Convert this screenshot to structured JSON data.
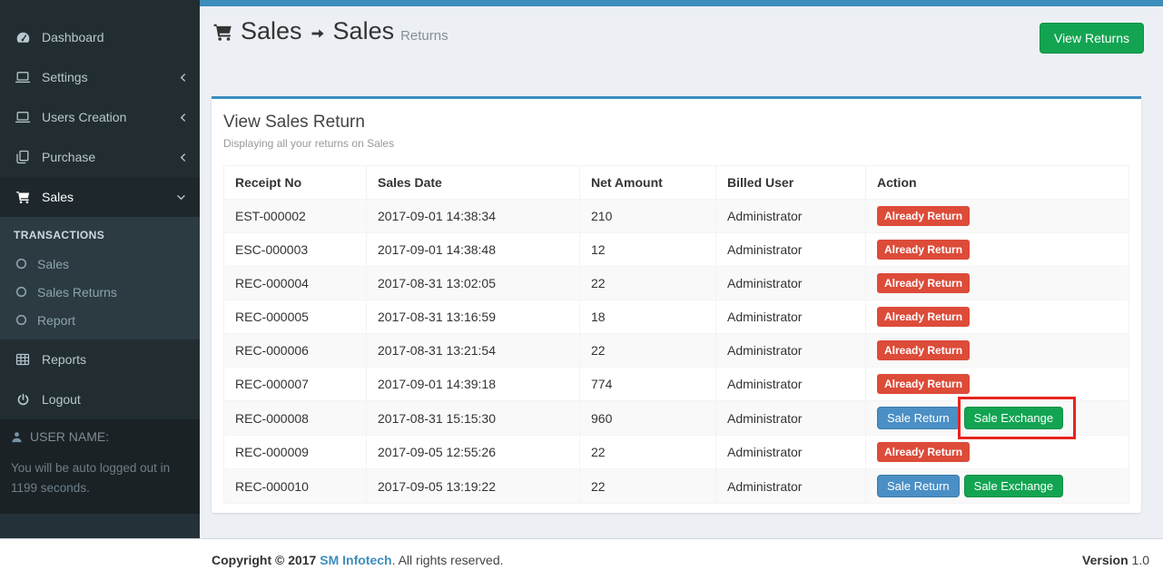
{
  "colors": {
    "accent_blue": "#3c8dbc",
    "button_green": "#13a452",
    "badge_red": "#dd4b39",
    "button_blue": "#4a8fc5",
    "sidebar_bg": "#222d32",
    "submenu_bg": "#2c3b41",
    "content_bg": "#ecf0f5",
    "highlight_red": "#e8231f"
  },
  "sidebar": {
    "items": [
      {
        "label": "Dashboard",
        "icon": "gauge-icon"
      },
      {
        "label": "Settings",
        "icon": "laptop-icon",
        "chevron": "left"
      },
      {
        "label": "Users Creation",
        "icon": "laptop-icon",
        "chevron": "left"
      },
      {
        "label": "Purchase",
        "icon": "copy-icon",
        "chevron": "left"
      },
      {
        "label": "Sales",
        "icon": "cart-icon",
        "chevron": "down",
        "active": true
      }
    ],
    "submenu_header": "TRANSACTIONS",
    "submenu": [
      {
        "label": "Sales"
      },
      {
        "label": "Sales Returns"
      },
      {
        "label": "Report"
      }
    ],
    "bottom_items": [
      {
        "label": "Reports",
        "icon": "table-icon"
      },
      {
        "label": "Logout",
        "icon": "power-icon"
      }
    ],
    "user_label": "USER NAME:",
    "auto_logout_text": "You will be auto logged out in 1199 seconds."
  },
  "header": {
    "breadcrumb_section": "Sales",
    "page_title": "Sales",
    "page_subtitle": "Returns",
    "view_returns_button": "View Returns"
  },
  "panel": {
    "title": "View Sales Return",
    "subtitle": "Displaying all your returns on Sales"
  },
  "table": {
    "columns": [
      "Receipt No",
      "Sales Date",
      "Net Amount",
      "Billed User",
      "Action"
    ],
    "rows": [
      {
        "receipt_no": "EST-000002",
        "sales_date": "2017-09-01 14:38:34",
        "net_amount": "210",
        "billed_user": "Administrator",
        "actions": [
          {
            "label": "Already Return",
            "type": "already-return"
          }
        ]
      },
      {
        "receipt_no": "ESC-000003",
        "sales_date": "2017-09-01 14:38:48",
        "net_amount": "12",
        "billed_user": "Administrator",
        "actions": [
          {
            "label": "Already Return",
            "type": "already-return"
          }
        ]
      },
      {
        "receipt_no": "REC-000004",
        "sales_date": "2017-08-31 13:02:05",
        "net_amount": "22",
        "billed_user": "Administrator",
        "actions": [
          {
            "label": "Already Return",
            "type": "already-return"
          }
        ]
      },
      {
        "receipt_no": "REC-000005",
        "sales_date": "2017-08-31 13:16:59",
        "net_amount": "18",
        "billed_user": "Administrator",
        "actions": [
          {
            "label": "Already Return",
            "type": "already-return"
          }
        ]
      },
      {
        "receipt_no": "REC-000006",
        "sales_date": "2017-08-31 13:21:54",
        "net_amount": "22",
        "billed_user": "Administrator",
        "actions": [
          {
            "label": "Already Return",
            "type": "already-return"
          }
        ]
      },
      {
        "receipt_no": "REC-000007",
        "sales_date": "2017-09-01 14:39:18",
        "net_amount": "774",
        "billed_user": "Administrator",
        "actions": [
          {
            "label": "Already Return",
            "type": "already-return"
          }
        ]
      },
      {
        "receipt_no": "REC-000008",
        "sales_date": "2017-08-31 15:15:30",
        "net_amount": "960",
        "billed_user": "Administrator",
        "actions": [
          {
            "label": "Sale Return",
            "type": "sale-return"
          },
          {
            "label": "Sale Exchange",
            "type": "sale-exchange",
            "highlighted": true
          }
        ]
      },
      {
        "receipt_no": "REC-000009",
        "sales_date": "2017-09-05 12:55:26",
        "net_amount": "22",
        "billed_user": "Administrator",
        "actions": [
          {
            "label": "Already Return",
            "type": "already-return"
          }
        ]
      },
      {
        "receipt_no": "REC-000010",
        "sales_date": "2017-09-05 13:19:22",
        "net_amount": "22",
        "billed_user": "Administrator",
        "actions": [
          {
            "label": "Sale Return",
            "type": "sale-return"
          },
          {
            "label": "Sale Exchange",
            "type": "sale-exchange"
          }
        ]
      }
    ]
  },
  "footer": {
    "copyright_prefix": "Copyright © 2017 ",
    "company_link": "SM Infotech",
    "copyright_suffix": ". All rights reserved.",
    "version_label": "Version",
    "version_value": "1.0"
  }
}
